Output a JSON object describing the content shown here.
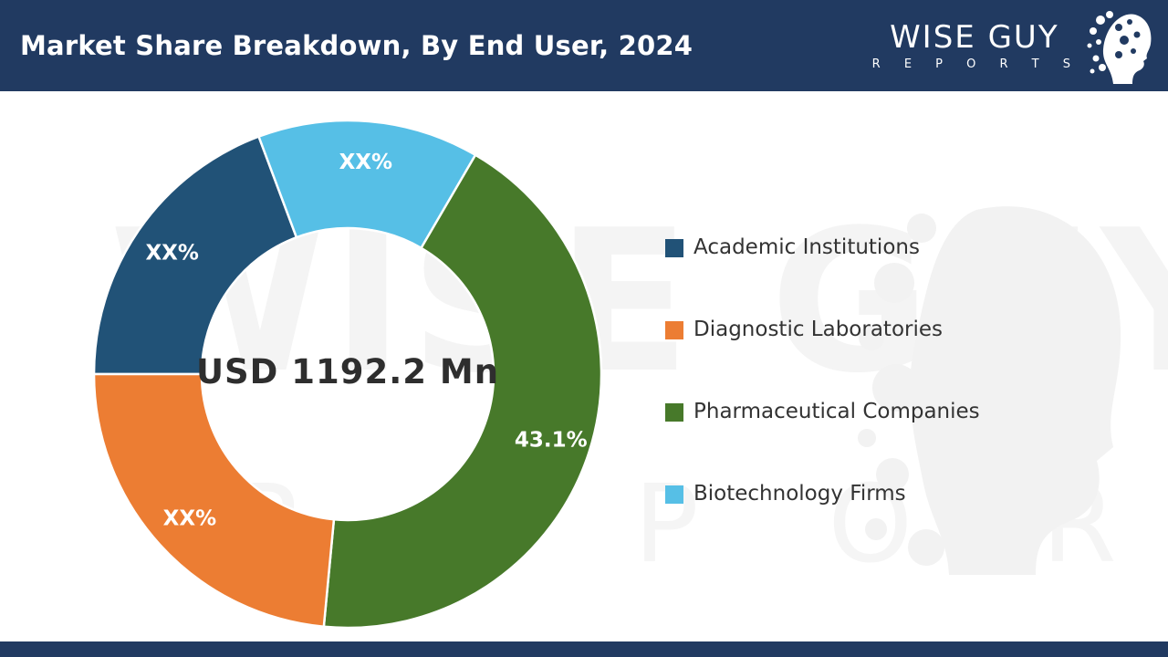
{
  "header": {
    "title": "Market Share Breakdown, By End User, 2024",
    "logo": {
      "name": "WISE GUY",
      "sub": "R E P O R T S"
    }
  },
  "watermark": {
    "line1": "WISE GUY",
    "line2": "R E P O R T S"
  },
  "chart_data": {
    "type": "pie",
    "subtype": "donut",
    "title": "Market Share Breakdown, By End User, 2024",
    "center_label": "USD 1192.2 Mn",
    "legend_position": "right",
    "segments": [
      {
        "label": "Academic Institutions",
        "color": "#215277",
        "display": "XX%",
        "percent": 19.3
      },
      {
        "label": "Diagnostic Laboratories",
        "color": "#EC7D33",
        "display": "XX%",
        "percent": 23.5
      },
      {
        "label": "Pharmaceutical Companies",
        "color": "#47792A",
        "display": "43.1%",
        "percent": 43.1
      },
      {
        "label": "Biotechnology Firms",
        "color": "#56BFE6",
        "display": "XX%",
        "percent": 14.1
      }
    ],
    "draw_order": [
      0,
      3,
      2,
      1
    ],
    "start_angle_deg": 270
  },
  "colors": {
    "header_bg": "#213A61",
    "footer_bg": "#213A61",
    "center_text": "#2E2E2E",
    "legend_text": "#333333",
    "label_text": "#FFFFFF"
  }
}
